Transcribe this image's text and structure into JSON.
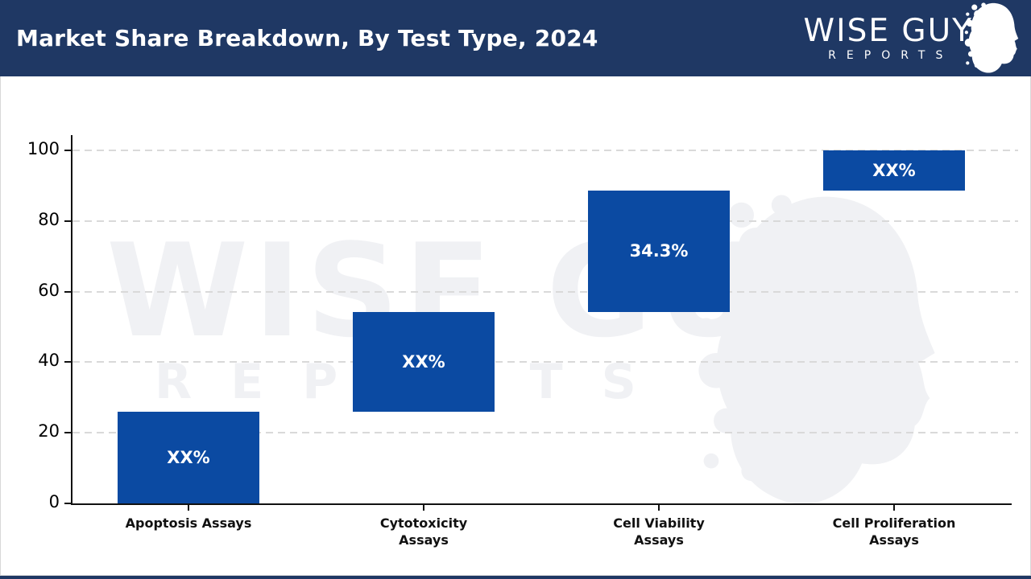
{
  "header": {
    "title": "Market Share Breakdown, By Test Type, 2024",
    "logo": {
      "wordmark": "WISE GUY",
      "subtext": "REPORTS"
    }
  },
  "watermark": {
    "line1": "WISE GUY",
    "line2": "REPORTS"
  },
  "colors": {
    "header_bg": "#1f3864",
    "footer_bg": "#1f3864",
    "bar_fill": "#0b4aa2",
    "bar_label_text": "#ffffff",
    "gridline": "#d9d9d9",
    "axis": "#111111",
    "watermark": "#f0f1f4",
    "title_text": "#ffffff"
  },
  "chart_data": {
    "type": "bar",
    "variant": "stacked-percentage-waterfall",
    "title": "Market Share Breakdown, By Test Type, 2024",
    "categories": [
      "Apoptosis Assays",
      "Cytotoxicity Assays",
      "Cell Viability Assays",
      "Cell Proliferation Assays"
    ],
    "category_label_lines": [
      [
        "Apoptosis Assays"
      ],
      [
        "Cytotoxicity",
        "Assays"
      ],
      [
        "Cell Viability",
        "Assays"
      ],
      [
        "Cell Proliferation",
        "Assays"
      ]
    ],
    "segments": [
      {
        "category": "Apoptosis Assays",
        "start": 0,
        "end": 26,
        "label": "XX%"
      },
      {
        "category": "Cytotoxicity Assays",
        "start": 26,
        "end": 54.3,
        "label": "XX%"
      },
      {
        "category": "Cell Viability Assays",
        "start": 54.3,
        "end": 88.6,
        "label": "34.3%",
        "value": 34.3
      },
      {
        "category": "Cell Proliferation Assays",
        "start": 88.6,
        "end": 100,
        "label": "XX%"
      }
    ],
    "xlabel": "",
    "ylabel": "",
    "ylim": [
      0,
      100
    ],
    "yticks": [
      0,
      20,
      40,
      60,
      80,
      100
    ],
    "grid": "horizontal-dashed",
    "legend": null
  }
}
